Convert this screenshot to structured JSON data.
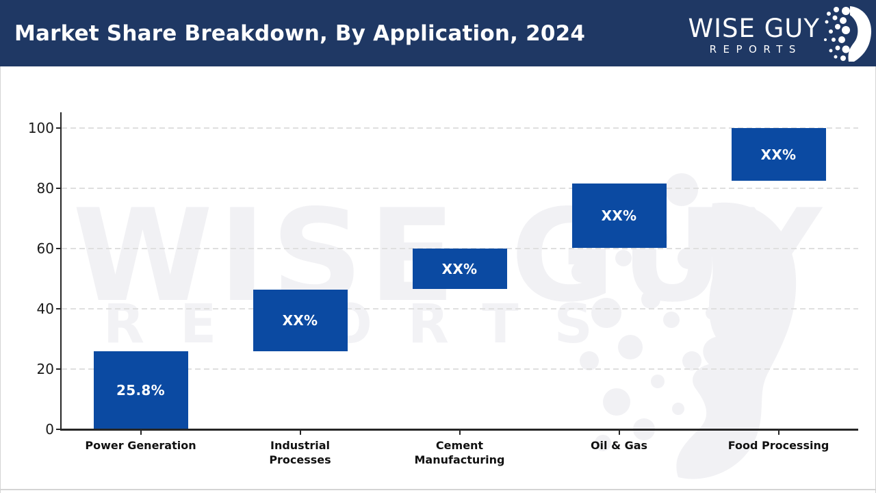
{
  "header": {
    "title": "Market Share Breakdown, By Application, 2024",
    "bg_color": "#1f3864",
    "logo": {
      "line1": "WISE GUY",
      "line2": "REPORTS"
    }
  },
  "watermark": {
    "line1": "WISE GUY",
    "line2": "REPORTS"
  },
  "chart_data": {
    "type": "bar",
    "variant": "floating-waterfall",
    "title": "Market Share Breakdown, By Application, 2024",
    "categories": [
      "Power Generation",
      "Industrial Processes",
      "Cement Manufacturing",
      "Oil & Gas",
      "Food Processing"
    ],
    "category_lines": [
      [
        "Power Generation"
      ],
      [
        "Industrial",
        "Processes"
      ],
      [
        "Cement",
        "Manufacturing"
      ],
      [
        "Oil & Gas"
      ],
      [
        "Food Processing"
      ]
    ],
    "bars": [
      {
        "category": "Power Generation",
        "start": 0,
        "end": 25.8,
        "label": "25.8%"
      },
      {
        "category": "Industrial Processes",
        "start": 26.0,
        "end": 46.3,
        "label": "XX%"
      },
      {
        "category": "Cement Manufacturing",
        "start": 46.5,
        "end": 60.0,
        "label": "XX%"
      },
      {
        "category": "Oil & Gas",
        "start": 60.3,
        "end": 81.6,
        "label": "XX%"
      },
      {
        "category": "Food Processing",
        "start": 82.5,
        "end": 100.0,
        "label": "XX%"
      }
    ],
    "ylim": [
      0,
      100
    ],
    "yticks": [
      0,
      20,
      40,
      60,
      80,
      100
    ],
    "xlabel": "",
    "ylabel": "",
    "legend": false,
    "grid": "horizontal-dashed",
    "bar_color": "#0b4aa2",
    "gridline_color": "#dfdfdf",
    "axis_color": "#262626"
  }
}
